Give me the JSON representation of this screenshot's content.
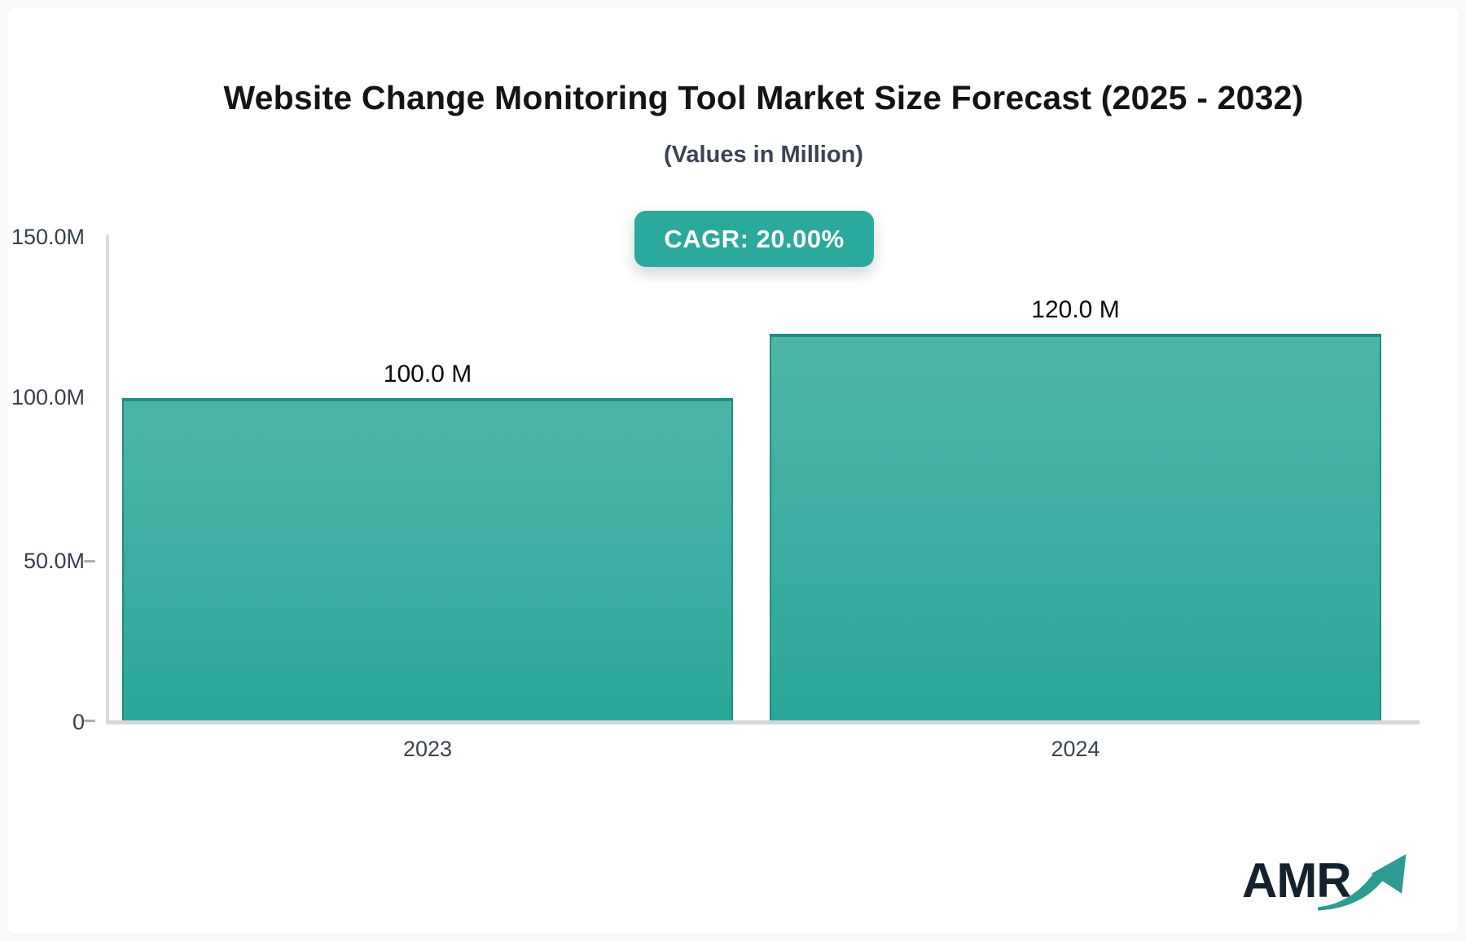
{
  "header": {
    "title": "Website Change Monitoring Tool Market Size Forecast (2025 - 2032)",
    "subtitle": "(Values in Million)"
  },
  "badge": {
    "label": "CAGR: 20.00%"
  },
  "chart_data": {
    "type": "bar",
    "title": "Website Change Monitoring Tool Market Size Forecast (2025 - 2032)",
    "subtitle": "(Values in Million)",
    "categories": [
      "2023",
      "2024"
    ],
    "values": [
      100.0,
      120.0
    ],
    "value_labels": [
      "100.0 M",
      "120.0 M"
    ],
    "units": "Million",
    "cagr": "20.00%",
    "xlabel": "",
    "ylabel": "",
    "ylim": [
      0,
      150
    ],
    "grid": false,
    "legend": false,
    "y_ticks": [
      {
        "label": "150.0M",
        "value": 150,
        "tick_mark": false
      },
      {
        "label": "100.0M",
        "value": 100,
        "tick_mark": false
      },
      {
        "label": "50.0M",
        "value": 50,
        "tick_mark": true
      },
      {
        "label": "0",
        "value": 0,
        "tick_mark": true
      }
    ]
  },
  "colors": {
    "bar_gradient_top": "#4db5a8",
    "bar_gradient_bottom": "#2aa79a",
    "bar_border": "#1e8e7f",
    "badge_bg": "#2ba99c",
    "axis_line": "#d5d9df",
    "title_text": "#141414",
    "label_text": "#363e4b",
    "logo_text_color": "#15222e",
    "logo_arrow_color": "#2e9a90"
  },
  "branding": {
    "logo_text": "AMR",
    "logo_icon": "growth-arrow-icon"
  }
}
